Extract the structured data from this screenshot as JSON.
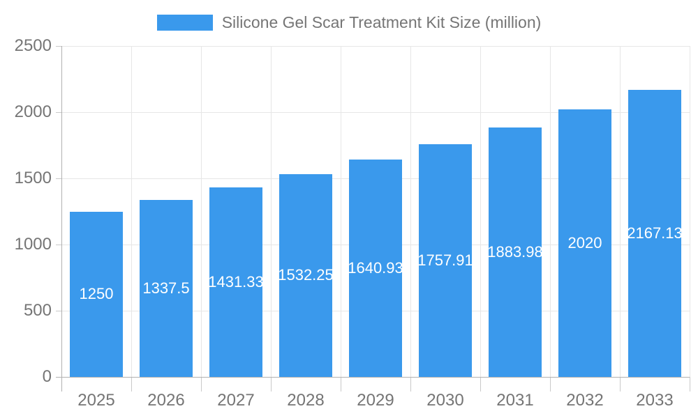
{
  "legend": {
    "label": "Silicone Gel Scar Treatment Kit Size (million)"
  },
  "chart_data": {
    "type": "bar",
    "title": "Silicone Gel Scar Treatment Kit Size (million)",
    "categories": [
      "2025",
      "2026",
      "2027",
      "2028",
      "2029",
      "2030",
      "2031",
      "2032",
      "2033"
    ],
    "values": [
      1250,
      1337.5,
      1431.33,
      1532.25,
      1640.93,
      1757.91,
      1883.98,
      2020,
      2167.13
    ],
    "bar_labels": [
      "1250",
      "1337.5",
      "1431.33",
      "1532.25",
      "1640.93",
      "1757.91",
      "1883.98",
      "2020",
      "2167.13"
    ],
    "xlabel": "",
    "ylabel": "",
    "ylim": [
      0,
      2500
    ],
    "yticks": [
      0,
      500,
      1000,
      1500,
      2000,
      2500
    ],
    "grid": true,
    "legend_position": "top",
    "colors": {
      "bar": "#3A99EC",
      "grid": "#E6E6E6",
      "axis": "#B1B1B1",
      "tick": "#C9C9C9",
      "text": "#757575",
      "bar_label": "#FFFFFF",
      "background": "#FFFFFF"
    }
  }
}
